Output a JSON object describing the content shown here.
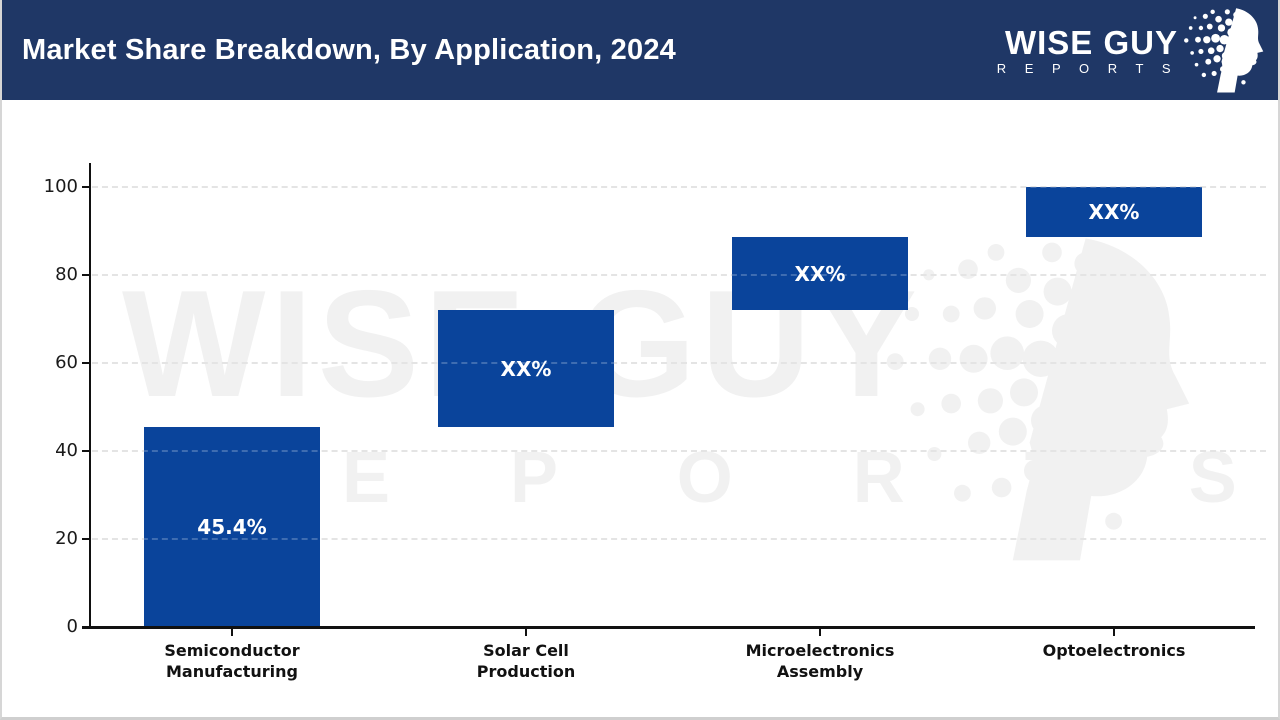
{
  "header": {
    "title": "Market Share Breakdown, By Application, 2024",
    "logo": {
      "line1": "WISE GUY",
      "line2": "R E P O R T S"
    }
  },
  "watermark": {
    "line1": "WISE GUY",
    "line2": "R E P O R T S"
  },
  "colors": {
    "header_bg": "#1f3766",
    "bar": "#0a449b",
    "grid": "#dddddd",
    "axis": "#111111",
    "value_label_text": "#ffffff",
    "watermark": "#f1f1f1"
  },
  "chart_data": {
    "type": "bar",
    "subtype": "waterfall",
    "title": "Market Share Breakdown, By Application, 2024",
    "xlabel": "",
    "ylabel": "",
    "ylim": [
      0,
      100
    ],
    "yticks": [
      0,
      20,
      40,
      60,
      80,
      100
    ],
    "grid": "horizontal-dashed",
    "legend": false,
    "categories": [
      "Semiconductor\nManufacturing",
      "Solar Cell\nProduction",
      "Microelectronics\nAssembly",
      "Optoelectronics"
    ],
    "segments": [
      {
        "category": "Semiconductor Manufacturing",
        "start": 0,
        "end": 45.4,
        "value": 45.4,
        "label": "45.4%"
      },
      {
        "category": "Solar Cell Production",
        "start": 45.4,
        "end": 72.0,
        "value": 26.6,
        "label": "XX%"
      },
      {
        "category": "Microelectronics Assembly",
        "start": 72.0,
        "end": 88.6,
        "value": 16.6,
        "label": "XX%"
      },
      {
        "category": "Optoelectronics",
        "start": 88.6,
        "end": 100,
        "value": 11.4,
        "label": "XX%"
      }
    ]
  }
}
